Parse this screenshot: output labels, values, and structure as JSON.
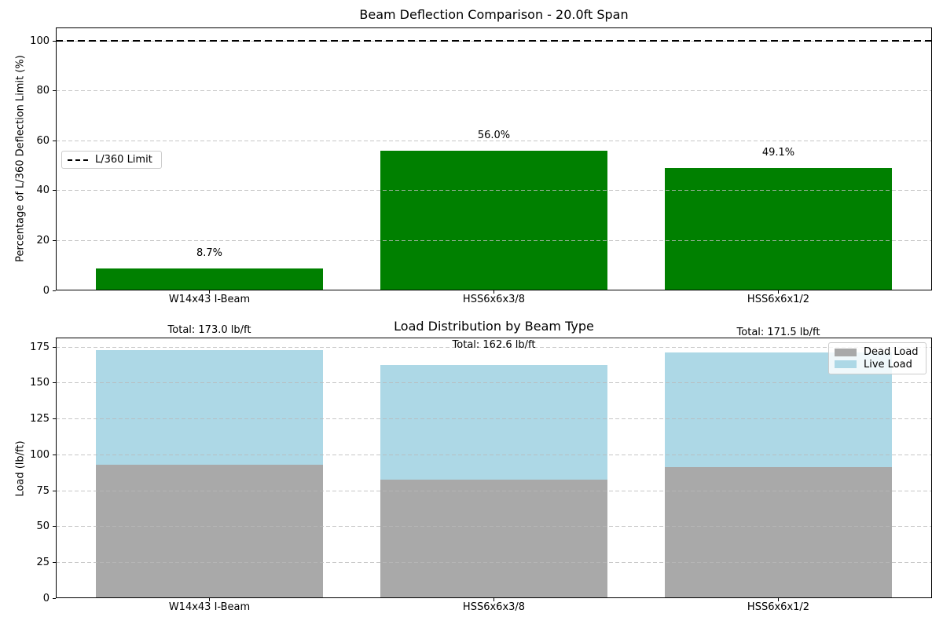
{
  "figure": {
    "background": "#ffffff",
    "text_color": "#000000",
    "grid_color": "#b9b9b9"
  },
  "chart_data": [
    {
      "type": "bar",
      "title": "Beam Deflection Comparison - 20.0ft Span",
      "ylabel": "Percentage of L/360 Deflection Limit (%)",
      "xlabel": "",
      "categories": [
        "W14x43 I-Beam",
        "HSS6x6x3/8",
        "HSS6x6x1/2"
      ],
      "values": [
        8.7,
        56.0,
        49.1
      ],
      "value_labels": [
        "8.7%",
        "56.0%",
        "49.1%"
      ],
      "bar_color": "#008000",
      "yticks": [
        0,
        20,
        40,
        60,
        80,
        100
      ],
      "ylim": [
        0,
        105.4
      ],
      "grid": true,
      "ref_line": {
        "value": 100,
        "label": "L/360 Limit",
        "color": "#000000",
        "style": "dashed"
      },
      "legend_position": "center left"
    },
    {
      "type": "stacked-bar",
      "title": "Load Distribution by Beam Type",
      "ylabel": "Load (lb/ft)",
      "xlabel": "",
      "categories": [
        "W14x43 I-Beam",
        "HSS6x6x3/8",
        "HSS6x6x1/2"
      ],
      "series": [
        {
          "name": "Dead Load",
          "color": "#a9a9a9",
          "values": [
            93.0,
            82.6,
            91.5
          ]
        },
        {
          "name": "Live Load",
          "color": "#add8e6",
          "values": [
            80.0,
            80.0,
            80.0
          ]
        }
      ],
      "totals": [
        173.0,
        162.6,
        171.5
      ],
      "total_labels": [
        "Total: 173.0 lb/ft",
        "Total: 162.6 lb/ft",
        "Total: 171.5 lb/ft"
      ],
      "yticks": [
        0,
        25,
        50,
        75,
        100,
        125,
        150,
        175
      ],
      "ylim": [
        0,
        181.7
      ],
      "grid": true,
      "legend_position": "upper right"
    }
  ]
}
